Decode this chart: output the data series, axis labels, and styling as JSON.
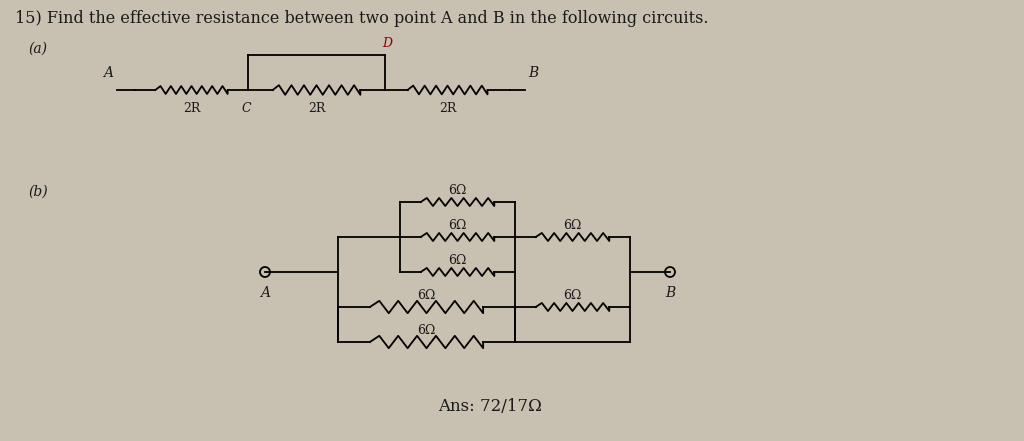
{
  "title_text": "15) Find the effective resistance between two point A and B in the following circuits.",
  "title_fontsize": 11.5,
  "bg_color": "#c8c0b0",
  "text_color": "#1a1a1a",
  "part_a_label": "(a)",
  "part_b_label": "(b)",
  "label_a": "A",
  "label_b": "B",
  "label_c": "C",
  "label_d": "D",
  "label_2R": "2R",
  "label_6ohm": "6Ω",
  "ans_text": "Ans: 72/17Ω",
  "lw": 1.3
}
